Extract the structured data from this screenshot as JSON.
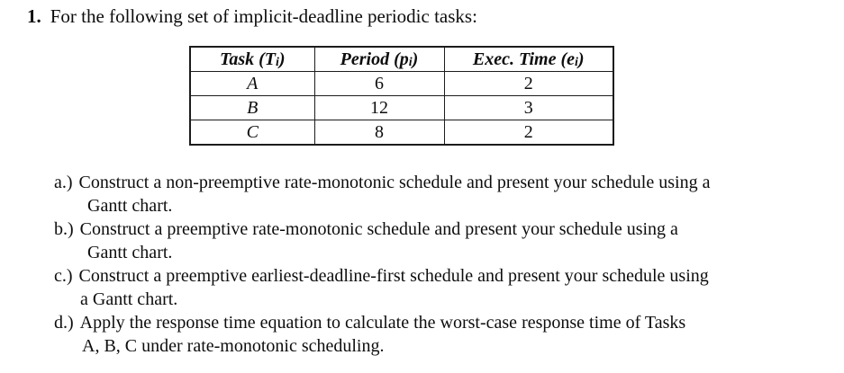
{
  "page": {
    "background_color": "#ffffff",
    "text_color": "#0d0d0d",
    "table_border_color": "#1c1c1c"
  },
  "heading": {
    "number": "1.",
    "text": "For the following set of implicit-deadline periodic tasks:"
  },
  "task_table": {
    "headers": [
      {
        "pre": "Task (T",
        "sub": "i",
        "post": ")"
      },
      {
        "pre": "Period (p",
        "sub": "i",
        "post": ")"
      },
      {
        "pre": "Exec. Time (e",
        "sub": "i",
        "post": ")"
      }
    ],
    "rows": [
      {
        "task": "A",
        "period": "6",
        "exec_time": "2"
      },
      {
        "task": "B",
        "period": "12",
        "exec_time": "3"
      },
      {
        "task": "C",
        "period": "8",
        "exec_time": "2"
      }
    ]
  },
  "questions": [
    {
      "label": "a.)",
      "line1": "Construct a non-preemptive rate-monotonic schedule and present your schedule using a",
      "line2": "Gantt chart."
    },
    {
      "label": "b.)",
      "line1": "Construct a preemptive rate-monotonic schedule and present your schedule using a",
      "line2": "Gantt chart."
    },
    {
      "label": "c.)",
      "line1": "Construct a preemptive earliest-deadline-first schedule and present your schedule using",
      "line2": "a Gantt chart."
    },
    {
      "label": "d.)",
      "line1": "Apply the response time equation to calculate the worst-case response time of Tasks",
      "line2": "A, B, C under rate-monotonic scheduling."
    }
  ]
}
